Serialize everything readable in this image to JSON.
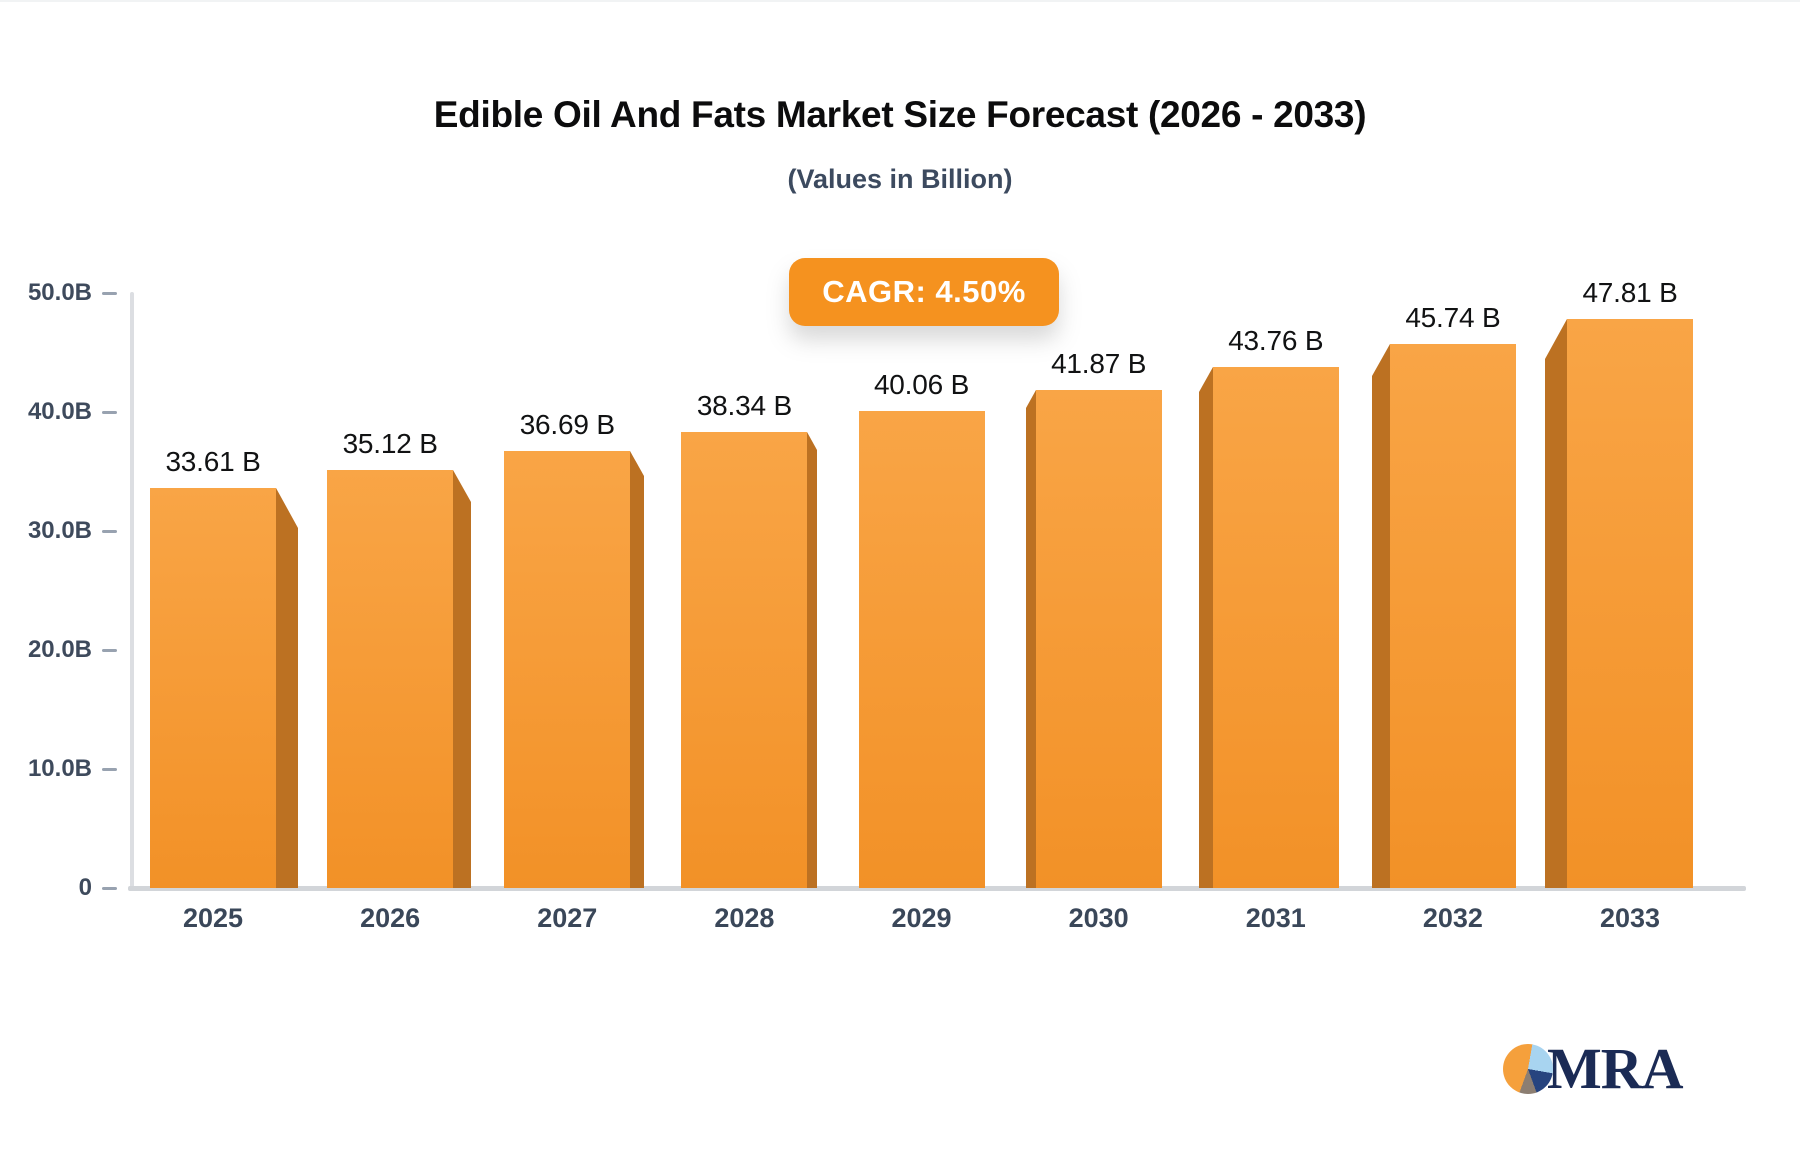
{
  "header": {
    "title": "Edible Oil And Fats Market Size Forecast (2026 - 2033)",
    "subtitle": "(Values in Billion)",
    "cagr_label": "CAGR: 4.50%"
  },
  "footer": {
    "logo_text": "MRA"
  },
  "colors": {
    "bar_face_top": "#F9A546",
    "bar_face_bottom": "#F29127",
    "bar_side": "#BC7122",
    "badge_orange": "#F5921F",
    "axis_line": "#DCDEE2",
    "baseline": "#D2D5D9",
    "tick_label": "#3E4A5C",
    "year_label": "#3A4759",
    "value_label": "#111213",
    "logo_navy": "#1B2B55",
    "logo_lightblue": "#A8D4F0",
    "logo_gray": "#8C7E72",
    "logo_orange": "#F5A03C"
  },
  "chart_data": {
    "type": "bar",
    "title": "Edible Oil And Fats Market Size Forecast (2026 - 2033)",
    "subtitle": "(Values in Billion)",
    "cagr": "CAGR: 4.50%",
    "categories": [
      "2025",
      "2026",
      "2027",
      "2028",
      "2029",
      "2030",
      "2031",
      "2032",
      "2033"
    ],
    "values": [
      33.61,
      35.12,
      36.69,
      38.34,
      40.06,
      41.87,
      43.76,
      45.74,
      47.81
    ],
    "value_labels": [
      "33.61 B",
      "35.12 B",
      "36.69 B",
      "38.34 B",
      "40.06 B",
      "41.87 B",
      "43.76 B",
      "45.74 B",
      "47.81 B"
    ],
    "unit": "Billion",
    "xlabel": "",
    "ylabel": "",
    "ylim": [
      0,
      50
    ],
    "yticks": [
      {
        "label": "50.0B",
        "value": 50
      },
      {
        "label": "40.0B",
        "value": 40
      },
      {
        "label": "30.0B",
        "value": 30
      },
      {
        "label": "20.0B",
        "value": 20
      },
      {
        "label": "10.0B",
        "value": 10
      },
      {
        "label": "0",
        "value": 0
      }
    ],
    "grid": false,
    "legend": false,
    "bar_style": "3d-perspective-center"
  }
}
